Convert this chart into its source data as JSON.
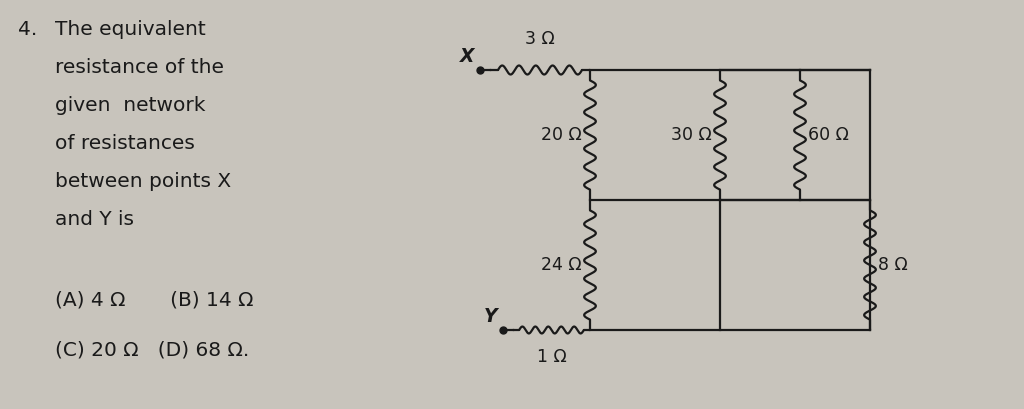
{
  "bg_color": "#c8c4bc",
  "text_color": "#1a1a1a",
  "line_color": "#1a1a1a",
  "line_width": 1.6,
  "question_number": "4.",
  "question_text_lines": [
    "The equivalent",
    "resistance of the",
    "given  network",
    "of resistances",
    "between points X",
    "and Y is"
  ],
  "options_line1": "(A) 4 Ω       (B) 14 Ω",
  "options_line2": "(C) 20 Ω   (D) 68 Ω.",
  "R_3": "3 Ω",
  "R_20": "20 Ω",
  "R_24": "24 Ω",
  "R_30": "30 Ω",
  "R_60": "60 Ω",
  "R_8": "8 Ω",
  "R_1": "1 Ω",
  "node_X": "X",
  "node_Y": "Y",
  "font_size_q": 14.5,
  "font_size_labels": 12.5,
  "font_size_options": 14.5
}
